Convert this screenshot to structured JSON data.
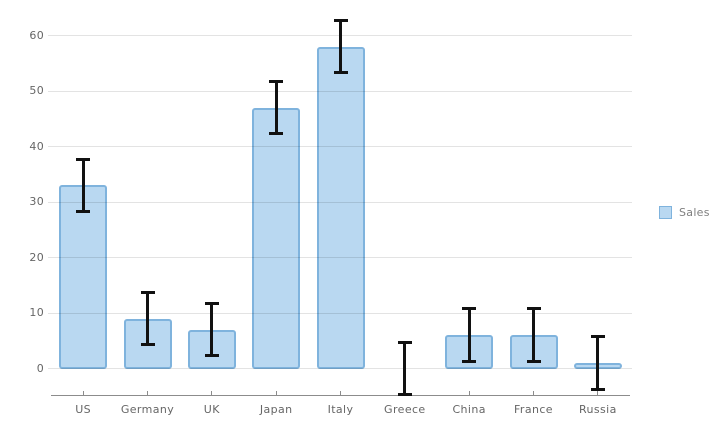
{
  "chart_data": {
    "type": "bar",
    "title": "",
    "xlabel": "",
    "ylabel": "",
    "categories": [
      "US",
      "Germany",
      "UK",
      "Japan",
      "Italy",
      "Greece",
      "China",
      "France",
      "Russia"
    ],
    "series": [
      {
        "name": "Sales",
        "values": [
          33,
          9,
          7,
          47,
          58,
          0,
          6,
          6,
          1
        ],
        "error_low": [
          28,
          4,
          2,
          42,
          53,
          -5,
          1,
          1,
          -4
        ],
        "error_high": [
          38,
          14,
          12,
          52,
          63,
          5,
          11,
          11,
          6
        ]
      }
    ],
    "y_ticks": [
      0,
      10,
      20,
      30,
      40,
      50,
      60
    ],
    "ylim": [
      -5,
      65
    ],
    "grid": true,
    "legend_position": "right",
    "colors": {
      "bar_fill": "#b9d8f1",
      "bar_border": "#7fb3dd",
      "error_bar": "#111111",
      "gridline": "rgba(0,0,0,0.11)",
      "axis_line": "#8c8c8c",
      "tick_text": "#666666",
      "legend_text": "#7f7f7f"
    }
  }
}
